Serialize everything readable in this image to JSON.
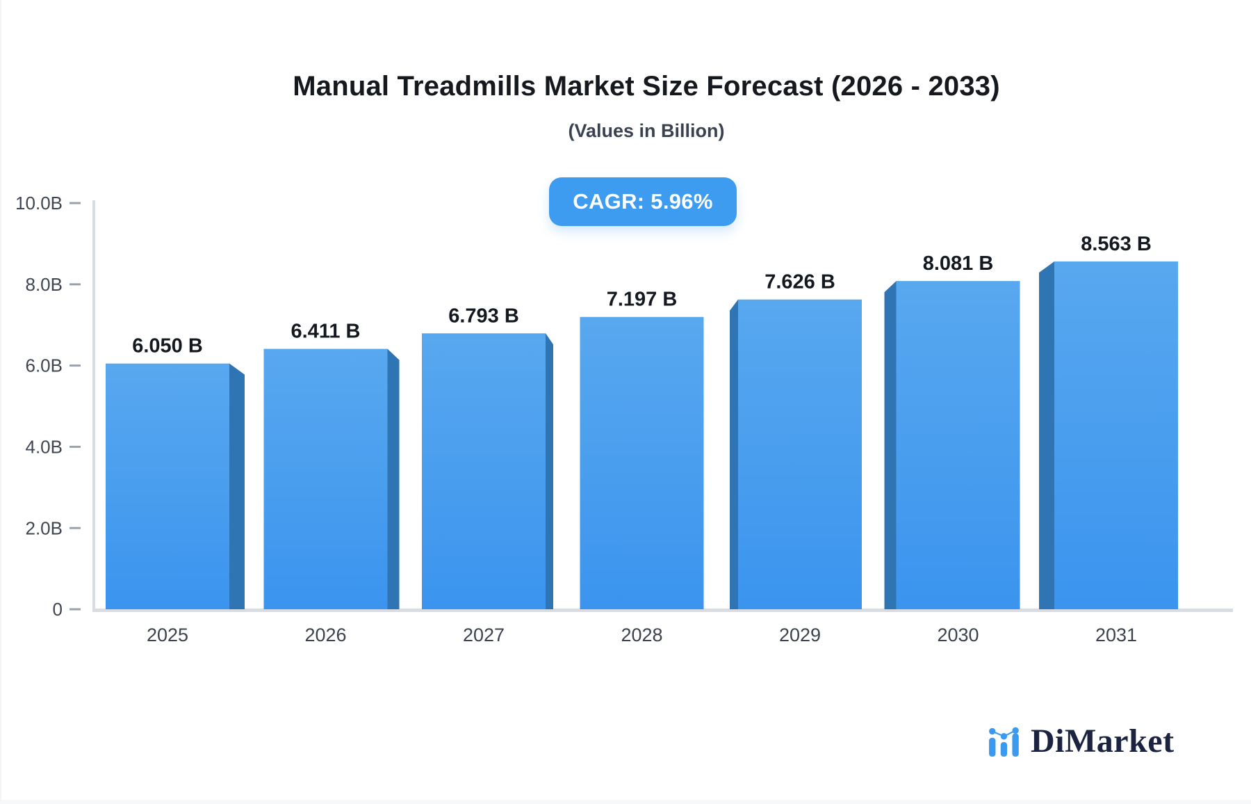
{
  "page": {
    "background": "#ffffff"
  },
  "header": {
    "title": "Manual Treadmills Market Size Forecast (2026 - 2033)",
    "subtitle": "(Values in Billion)"
  },
  "badge": {
    "label": "CAGR: 5.96%",
    "bg_color": "#3e9cf0",
    "text_color": "#ffffff"
  },
  "logo": {
    "text": "DiMarket",
    "icon": "bar-line-chart-icon",
    "text_color": "#1b2340",
    "accent_color": "#3b9af0"
  },
  "chart_data": {
    "type": "bar",
    "title": "Manual Treadmills Market Size Forecast (2026 - 2033)",
    "subtitle": "(Values in Billion)",
    "cagr_label": "CAGR: 5.96%",
    "categories": [
      "2025",
      "2026",
      "2027",
      "2028",
      "2029",
      "2030",
      "2031"
    ],
    "values": [
      6.05,
      6.411,
      6.793,
      7.197,
      7.626,
      8.081,
      8.563
    ],
    "value_labels": [
      "6.050 B",
      "6.411 B",
      "6.793 B",
      "7.197 B",
      "7.626 B",
      "8.081 B",
      "8.563 B"
    ],
    "unit": "Billion",
    "xlabel": "",
    "ylabel": "",
    "ylim": [
      0,
      10
    ],
    "yticks": [
      0,
      2,
      4,
      6,
      8,
      10
    ],
    "ytick_labels": [
      "0",
      "2.0B",
      "4.0B",
      "6.0B",
      "8.0B",
      "10.0B"
    ],
    "grid": false,
    "legend": "none",
    "style": "3d-extruded-bars",
    "colors": {
      "bar_top": "#58a8ef",
      "bar_bottom": "#3b94ee",
      "bar_side": "#2f75b4",
      "axis_line": "#d9dde3",
      "tick_dash": "#9aa2ac",
      "tick_text": "#3f4550",
      "category_text": "#3c424d",
      "value_text": "#14181f"
    }
  }
}
